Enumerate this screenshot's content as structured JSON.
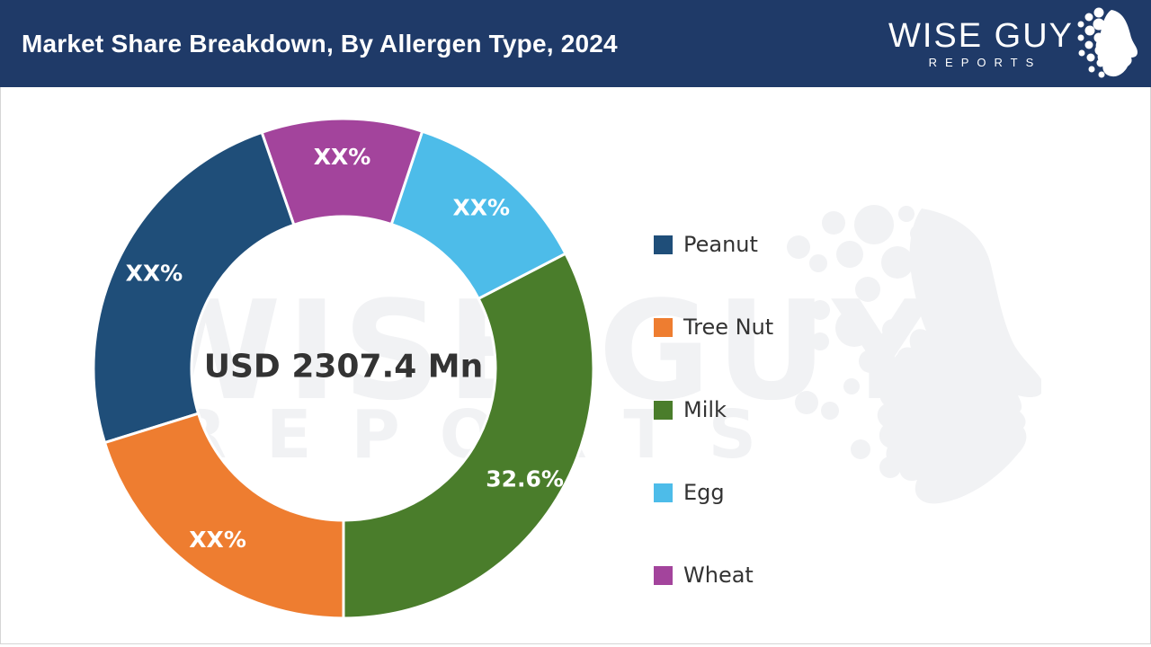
{
  "header": {
    "title": "Market Share Breakdown, By Allergen Type, 2024",
    "bg_color": "#1F3A68",
    "logo": {
      "line1": "WISE GUY",
      "line2": "REPORTS"
    }
  },
  "watermark": {
    "line1": "WISE GUY",
    "line2": "REPORTS"
  },
  "chart_data": {
    "type": "pie",
    "donut": true,
    "title": "Market Share Breakdown, By Allergen Type, 2024",
    "center_label": "USD 2307.4 Mn",
    "categories": [
      "Peanut",
      "Tree Nut",
      "Milk",
      "Egg",
      "Wheat"
    ],
    "slices": [
      {
        "label": "Peanut",
        "display_value": "XX%",
        "percent_estimate": 24.5,
        "color": "#1F4E79",
        "masked": true
      },
      {
        "label": "Tree Nut",
        "display_value": "XX%",
        "percent_estimate": 20.2,
        "color": "#EE7D30",
        "masked": true
      },
      {
        "label": "Milk",
        "display_value": "32.6%",
        "percent_estimate": 32.6,
        "color": "#4A7D2B",
        "masked": false
      },
      {
        "label": "Egg",
        "display_value": "XX%",
        "percent_estimate": 12.3,
        "color": "#4DBCE9",
        "masked": true
      },
      {
        "label": "Wheat",
        "display_value": "XX%",
        "percent_estimate": 10.4,
        "color": "#A3449C",
        "masked": true
      }
    ],
    "known_values": {
      "Milk": "32.6%"
    },
    "arc_order": [
      "Milk",
      "Egg",
      "Wheat",
      "Peanut",
      "Tree Nut"
    ],
    "start_angle_deg": -90,
    "direction": "counterclockwise",
    "slice_label_color": "#ffffff",
    "legend_position": "right"
  }
}
